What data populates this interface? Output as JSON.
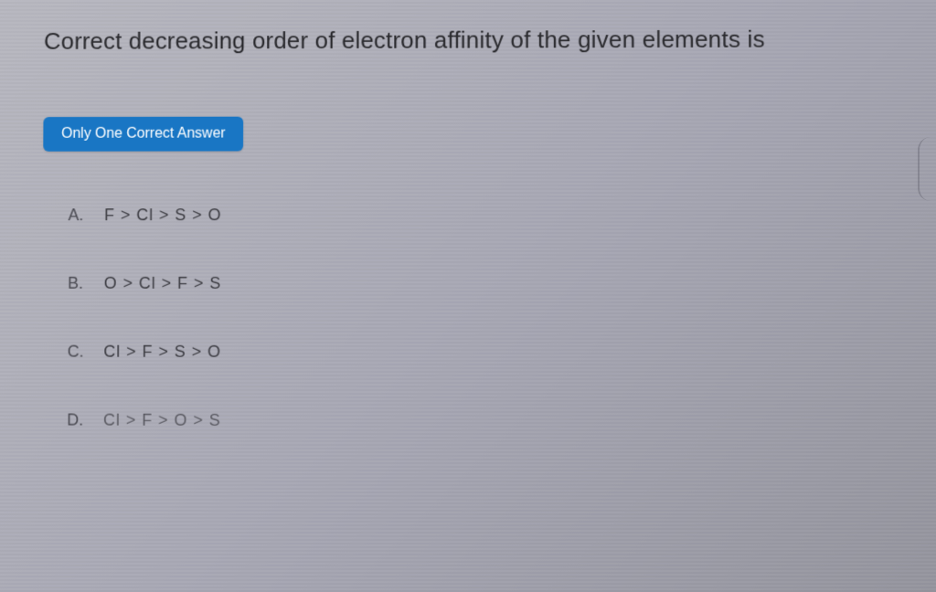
{
  "question": {
    "title": "Correct decreasing order of electron affinity of the given elements is"
  },
  "badge": {
    "label": "Only One Correct Answer",
    "bg_color": "#1976c4",
    "text_color": "#ffffff"
  },
  "options": [
    {
      "letter": "A.",
      "text": "F > Cl > S > O"
    },
    {
      "letter": "B.",
      "text": "O > Cl > F > S"
    },
    {
      "letter": "C.",
      "text": "Cl > F > S > O"
    },
    {
      "letter": "D.",
      "text": "Cl > F > O > S"
    }
  ]
}
